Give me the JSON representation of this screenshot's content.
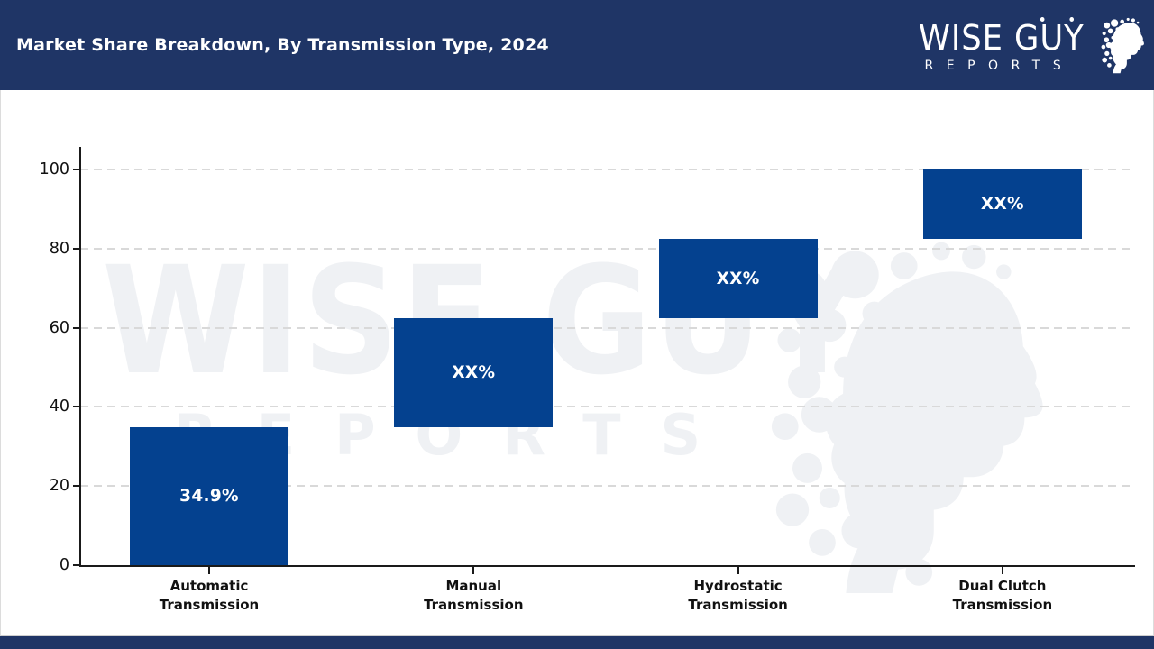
{
  "header": {
    "title": "Market Share Breakdown, By Transmission Type, 2024",
    "logo": {
      "line1": "WISE GUY",
      "line2": "REPORTS"
    }
  },
  "watermark": {
    "line1": "WISE GUY",
    "line2": "REPORTS"
  },
  "chart_data": {
    "type": "bar",
    "subtype": "floating-waterfall",
    "title": "Market Share Breakdown, By Transmission Type, 2024",
    "categories": [
      "Automatic Transmission",
      "Manual Transmission",
      "Hydrostatic Transmission",
      "Dual Clutch Transmission"
    ],
    "series": [
      {
        "category": "Automatic Transmission",
        "start": 0,
        "end": 34.9,
        "label": "34.9%"
      },
      {
        "category": "Manual Transmission",
        "start": 34.9,
        "end": 62.4,
        "label": "XX%"
      },
      {
        "category": "Hydrostatic Transmission",
        "start": 62.4,
        "end": 82.4,
        "label": "XX%"
      },
      {
        "category": "Dual Clutch Transmission",
        "start": 82.4,
        "end": 100,
        "label": "XX%"
      }
    ],
    "xlabel": "",
    "ylabel": "",
    "yticks": [
      0,
      20,
      40,
      60,
      80,
      100
    ],
    "ylim": [
      0,
      106.5
    ],
    "grid": "horizontal-dashed",
    "legend": "none"
  },
  "theme": {
    "header_bg": "#1f3566",
    "footer_bg": "#1f3566",
    "page_bg": "#ffffff",
    "bar_color": "#04418f",
    "bar_label_color": "#ffffff",
    "grid_color": "#d9d9d9",
    "axis_color": "#1a1a1a",
    "tick_label_color": "#111111",
    "watermark_color": "#eff1f4"
  }
}
